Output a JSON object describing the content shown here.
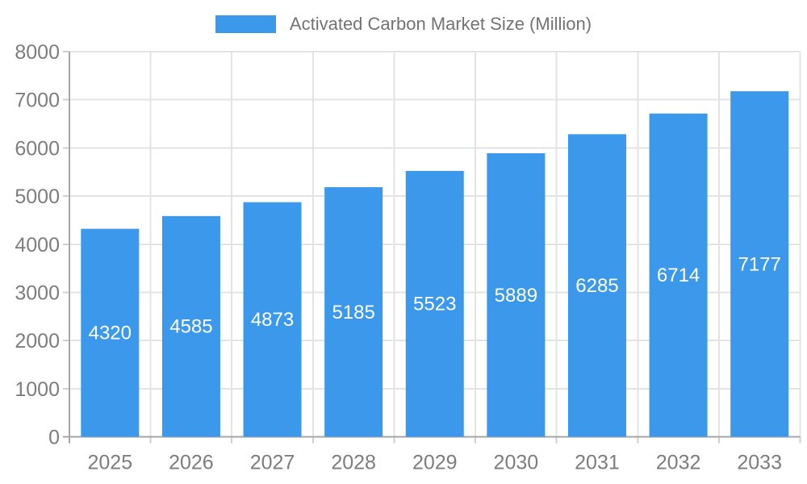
{
  "chart_data": {
    "type": "bar",
    "title": "Activated Carbon Market Size (Million)",
    "legend": [
      "Activated Carbon Market Size (Million)"
    ],
    "legend_position": "top-center",
    "categories": [
      "2025",
      "2026",
      "2027",
      "2028",
      "2029",
      "2030",
      "2031",
      "2032",
      "2033"
    ],
    "series": [
      {
        "name": "Activated Carbon Market Size (Million)",
        "values": [
          4320,
          4585,
          4873,
          5185,
          5523,
          5889,
          6285,
          6714,
          7177
        ]
      }
    ],
    "xlabel": "",
    "ylabel": "",
    "ylim": [
      0,
      8000
    ],
    "ytick_step": 1000,
    "ytick_labels": [
      "0",
      "1000",
      "2000",
      "3000",
      "4000",
      "5000",
      "6000",
      "7000",
      "8000"
    ],
    "grid": true,
    "value_labels": "inside-center",
    "colors": {
      "bar_fill": "#3b98eb",
      "bar_value_text": "#ffffff",
      "axis_line": "#a6a6a6",
      "grid_line": "#e3e3e3",
      "tick_line": "#d0d0d0",
      "tick_text": "#7d7d7d",
      "legend_text": "#737373"
    }
  }
}
